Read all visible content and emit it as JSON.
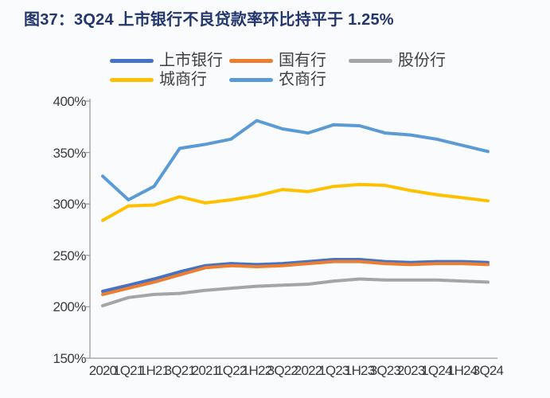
{
  "figure": {
    "title": "图37：3Q24 上市银行不良贷款率环比持平于 1.25%",
    "title_color": "#22356f"
  },
  "chart_data": {
    "type": "line",
    "title": "图37：3Q24 上市银行不良贷款率环比持平于 1.25%",
    "categories": [
      "2020",
      "1Q21",
      "1H21",
      "3Q21",
      "2021",
      "1Q22",
      "1H22",
      "3Q22",
      "2022",
      "1Q23",
      "1H23",
      "3Q23",
      "2023",
      "1Q24",
      "1H24",
      "3Q24"
    ],
    "series": [
      {
        "name": "上市银行",
        "color": "#4472C4",
        "values": [
          215,
          221,
          227,
          234,
          240,
          242,
          241,
          242,
          244,
          246,
          246,
          244,
          243,
          244,
          244,
          243
        ]
      },
      {
        "name": "国有行",
        "color": "#ED7D31",
        "values": [
          212,
          218,
          224,
          231,
          238,
          240,
          239,
          240,
          242,
          244,
          244,
          242,
          241,
          242,
          242,
          241
        ]
      },
      {
        "name": "股份行",
        "color": "#A5A5A5",
        "values": [
          201,
          209,
          212,
          213,
          216,
          218,
          220,
          221,
          222,
          225,
          227,
          226,
          226,
          226,
          225,
          224
        ]
      },
      {
        "name": "城商行",
        "color": "#FFC000",
        "values": [
          284,
          298,
          299,
          307,
          301,
          304,
          308,
          314,
          312,
          317,
          319,
          318,
          313,
          309,
          306,
          303
        ]
      },
      {
        "name": "农商行",
        "color": "#5B9BD5",
        "values": [
          327,
          304,
          317,
          354,
          358,
          363,
          381,
          373,
          369,
          377,
          376,
          369,
          367,
          363,
          357,
          351
        ]
      }
    ],
    "legend": {
      "position": "top",
      "rows": 2,
      "order": [
        "上市银行",
        "国有行",
        "股份行",
        "城商行",
        "农商行"
      ]
    },
    "y_axis": {
      "tick_labels": [
        "400%",
        "350%",
        "300%",
        "250%",
        "200%",
        "150%"
      ],
      "tick_values": [
        400,
        350,
        300,
        250,
        200,
        150
      ],
      "ylim": [
        150,
        400
      ],
      "unit": "%"
    },
    "x_axis": {
      "label": ""
    },
    "grid": false,
    "style": {
      "axis_color": "#9b9b9b",
      "label_color": "#3b3b3b",
      "line_width": 4
    }
  }
}
